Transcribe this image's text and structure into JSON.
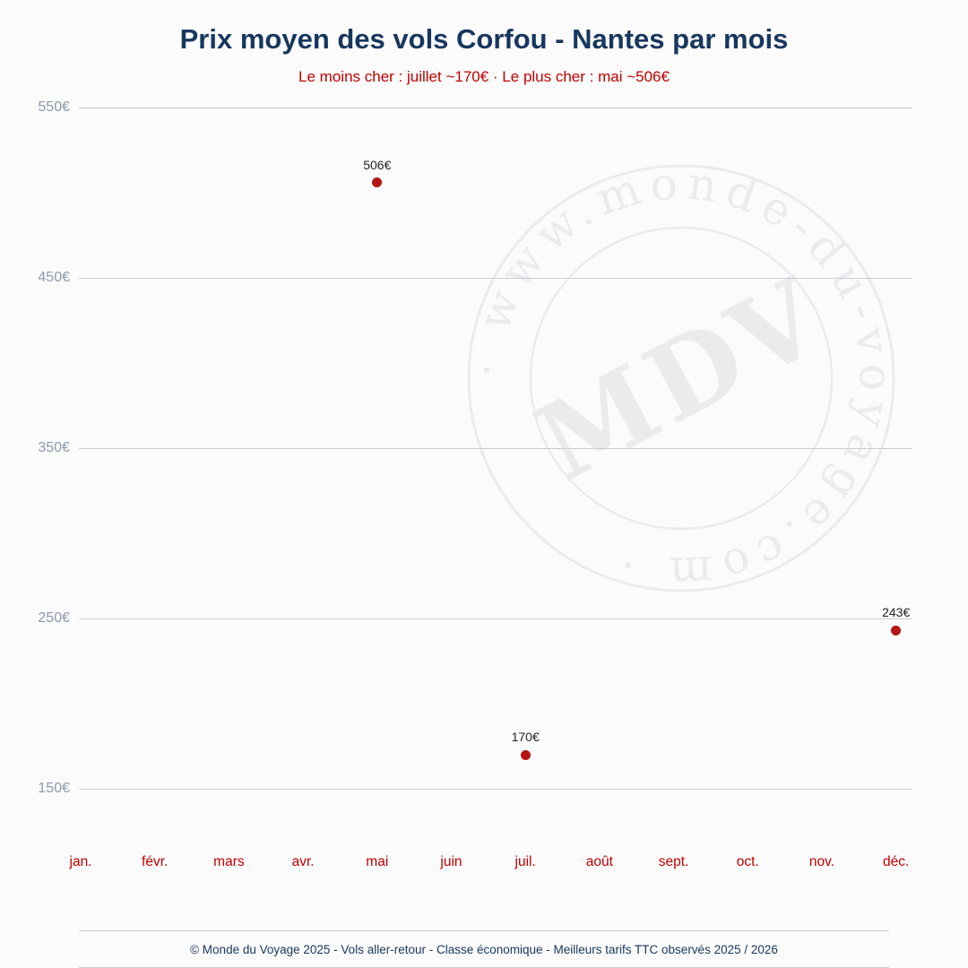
{
  "page": {
    "title": "Prix moyen des vols Corfou - Nantes par mois",
    "subtitle": "Le moins cher : juillet ~170€ · Le plus cher : mai ~506€",
    "footer": "© Monde du Voyage 2025 - Vols aller-retour - Classe économique - Meilleurs tarifs TTC observés 2025 / 2026"
  },
  "watermark": {
    "ring_text": "· www.monde-du-voyage.com ·",
    "center_text": "MDV"
  },
  "chart_data": {
    "type": "scatter",
    "title": "Prix moyen des vols Corfou - Nantes par mois",
    "subtitle": "Le moins cher : juillet ~170€ · Le plus cher : mai ~506€",
    "xlabel": "",
    "ylabel": "",
    "categories": [
      "jan.",
      "févr.",
      "mars",
      "avr.",
      "mai",
      "juin",
      "juil.",
      "août",
      "sept.",
      "oct.",
      "nov.",
      "déc."
    ],
    "points": [
      {
        "month": "mai",
        "value": 506,
        "label": "506€"
      },
      {
        "month": "juil.",
        "value": 170,
        "label": "170€"
      },
      {
        "month": "déc.",
        "value": 243,
        "label": "243€"
      }
    ],
    "y_ticks": [
      550,
      450,
      350,
      250,
      150
    ],
    "y_tick_labels": [
      "550€",
      "450€",
      "350€",
      "250€",
      "150€"
    ],
    "ylim": [
      150,
      550
    ],
    "grid": "horizontal",
    "legend": "none",
    "colors": {
      "point": "#b51414",
      "title": "#17375e",
      "subtitle": "#c00000",
      "month_label": "#c00000",
      "y_tick_label": "#8b9aae",
      "gridline": "#c4cedc",
      "point_label": "#21242a"
    }
  }
}
